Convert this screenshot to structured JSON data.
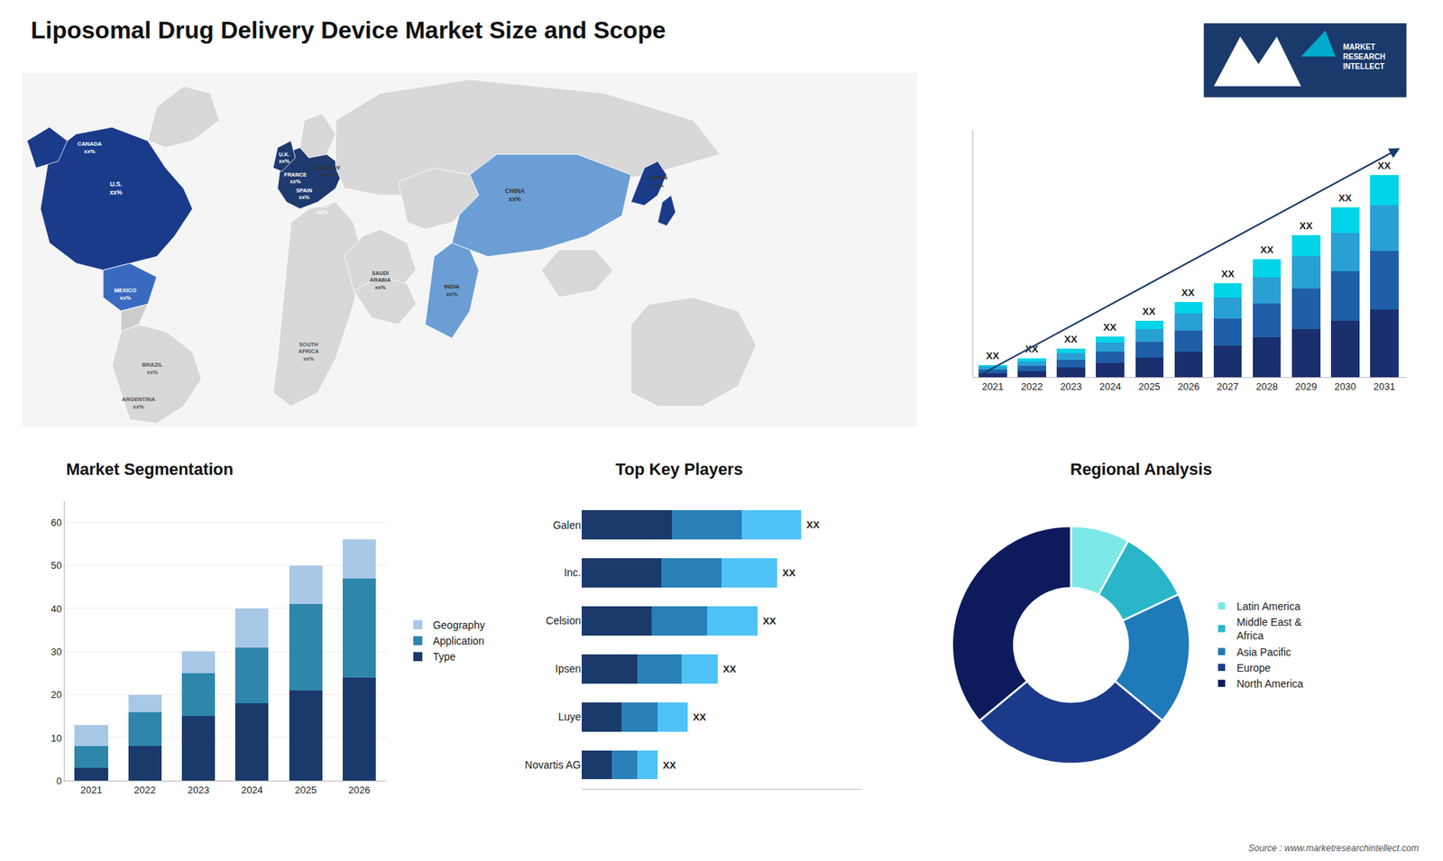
{
  "title": "Liposomal Drug Delivery Device Market Size and Scope",
  "annotations": [
    "Source : www.marketresearchintellect.com",
    "MARKET\nRESEARCH\nINTELLECT"
  ],
  "chart_data": [
    {
      "type": "map",
      "annotations": [
        "U.S.\nxx%",
        "CANADA\nxx%",
        "MEXICO\nxx%",
        "BRAZIL\nxx%",
        "ARGENTINA\nxx%",
        "U.K.\nxx%",
        "FRANCE\nxx%",
        "GERMANY\nxx%",
        "SPAIN\nxx%",
        "ITALY\nxx%",
        "SAUDI\nARABIA\nxx%",
        "CHINA\nxx%",
        "INDIA\nxx%",
        "JAPAN\nxx%",
        "SOUTH\nAFRICA\nxx%"
      ]
    },
    {
      "type": "bar",
      "stacked": true,
      "categories": [
        "2021",
        "2022",
        "2023",
        "2024",
        "2025",
        "2026",
        "2027",
        "2028",
        "2029",
        "2030",
        "2031"
      ],
      "series": [
        {
          "color": "#1a2f6e",
          "values": [
            1.2,
            1.8,
            2.8,
            4.0,
            5.5,
            7.2,
            9.0,
            11.2,
            13.5,
            16.0,
            19.0
          ]
        },
        {
          "color": "#1e5fa8",
          "values": [
            1.0,
            1.5,
            2.2,
            3.2,
            4.5,
            6.0,
            7.5,
            9.5,
            11.5,
            13.8,
            16.5
          ]
        },
        {
          "color": "#29a0d4",
          "values": [
            0.8,
            1.2,
            1.8,
            2.5,
            3.5,
            4.8,
            6.0,
            7.5,
            9.0,
            10.8,
            13.0
          ]
        },
        {
          "color": "#00d4e8",
          "values": [
            0.5,
            0.8,
            1.2,
            1.8,
            2.5,
            3.2,
            4.0,
            5.0,
            6.0,
            7.2,
            8.5
          ]
        }
      ],
      "annotations": [
        "XX",
        "XX",
        "XX",
        "XX",
        "XX",
        "XX",
        "XX",
        "XX",
        "XX",
        "XX",
        "XX"
      ],
      "ylim": [
        0,
        69.54
      ],
      "yticks": [],
      "grid": false,
      "tick_labels": "x"
    },
    {
      "type": "bar",
      "stacked": true,
      "title": "Market Segmentation",
      "categories": [
        "2021",
        "2022",
        "2023",
        "2024",
        "2025",
        "2026"
      ],
      "series": [
        {
          "name": "Type",
          "color": "#1a3a6b",
          "values": [
            3,
            8,
            15,
            18,
            21,
            24
          ]
        },
        {
          "name": "Application",
          "color": "#2e86ab",
          "values": [
            5,
            8,
            10,
            13,
            20,
            23
          ]
        },
        {
          "name": "Geography",
          "color": "#a8c8e8",
          "values": [
            5,
            4,
            5,
            9,
            9,
            9
          ]
        }
      ],
      "ylim": [
        0,
        65
      ],
      "yticks": [
        0,
        10,
        20,
        30,
        40,
        50,
        60
      ],
      "grid": true,
      "legend": "right"
    },
    {
      "type": "bar",
      "orientation": "horizontal",
      "stacked": true,
      "title": "Top Key Players",
      "categories": [
        "Galen",
        "Inc.",
        "Celsion",
        "Ipsen",
        "Luye",
        "Novartis AG"
      ],
      "series": [
        {
          "color": "#1a3a6b",
          "values": [
            4.5,
            4.0,
            3.5,
            2.8,
            2.0,
            1.5
          ]
        },
        {
          "color": "#2980b9",
          "values": [
            3.5,
            3.0,
            2.8,
            2.2,
            1.8,
            1.3
          ]
        },
        {
          "color": "#4fc3f7",
          "values": [
            3.0,
            2.8,
            2.5,
            1.8,
            1.5,
            1.0
          ]
        }
      ],
      "annotations": [
        "XX",
        "XX",
        "XX",
        "XX",
        "XX",
        "XX"
      ],
      "xlim": [
        0,
        14
      ],
      "xticks": [],
      "grid": false,
      "tick_labels": "y"
    },
    {
      "type": "pie",
      "title": "Regional Analysis",
      "categories": [
        "Latin America",
        "Middle East &\nAfrica",
        "Asia Pacific",
        "Europe",
        "North America"
      ],
      "values": [
        8,
        10,
        18,
        28,
        36
      ],
      "colors": [
        "#7ee8e8",
        "#29b6c8",
        "#1e7ab8",
        "#1a3a8a",
        "#0d1a5c"
      ],
      "legend": "right"
    }
  ]
}
